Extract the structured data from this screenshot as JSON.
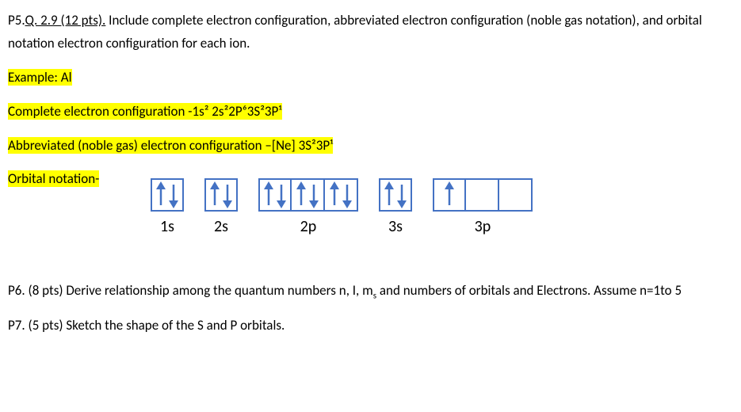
{
  "p5": {
    "prefix": "P5.",
    "qnum": "Q. 2.9 (12 pts).",
    "text_rest": " Include complete electron configuration, abbreviated electron configuration (noble gas notation), and orbital notation electron configuration for each ion."
  },
  "example": {
    "title": "Example: Al",
    "complete_label": "Complete electron configuration -",
    "complete_config": "1s² 2s²2P⁶3S²3P¹",
    "abbrev_label": "Abbreviated (noble gas) electron configuration –",
    "abbrev_config": "[Ne] 3S²3P¹",
    "orbital_label": "Orbital notation-"
  },
  "orbitals": {
    "box_border_color": "#4472c4",
    "arrow_color": "#4472c4",
    "box_size": 42,
    "groups": [
      {
        "label": "1s",
        "boxes": [
          {
            "up": true,
            "down": true
          }
        ]
      },
      {
        "label": "2s",
        "boxes": [
          {
            "up": true,
            "down": true
          }
        ]
      },
      {
        "label": "2p",
        "boxes": [
          {
            "up": true,
            "down": true
          },
          {
            "up": true,
            "down": true
          },
          {
            "up": true,
            "down": true
          }
        ]
      },
      {
        "label": "3s",
        "boxes": [
          {
            "up": true,
            "down": true
          }
        ]
      },
      {
        "label": "3p",
        "boxes": [
          {
            "up": true,
            "down": false
          },
          {
            "up": false,
            "down": false
          },
          {
            "up": false,
            "down": false
          }
        ]
      }
    ]
  },
  "p6": {
    "text_before_sub": "P6. (8 pts) Derive relationship among the quantum numbers n, I, m",
    "sub": "s",
    "text_after_sub": " and numbers of orbitals and Electrons. Assume n=1to 5"
  },
  "p7": {
    "text": "P7. (5 pts) Sketch the shape of the S and P orbitals."
  }
}
